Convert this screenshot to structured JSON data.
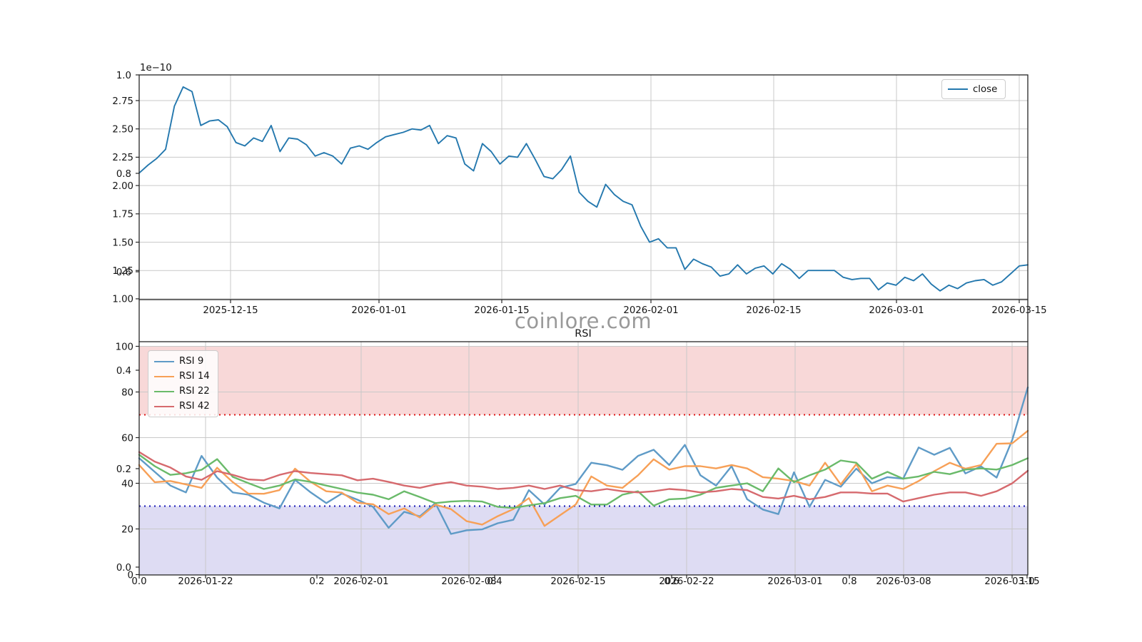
{
  "watermark": "coinlore.com",
  "overlay_axis": {
    "left_tick_labels": [
      "1.0",
      "0.8",
      "0.6",
      "0.4",
      "0.2",
      "0.0"
    ],
    "bottom_tick_labels": [
      "0.0",
      "0.2",
      "0.4",
      "0.6",
      "0.8",
      "1.0"
    ]
  },
  "chart_data": [
    {
      "type": "line",
      "title": "",
      "legend_position": "upper right",
      "grid": true,
      "y_offset_label": "1e−10",
      "x_ticks": [
        "2025-12-15",
        "2026-01-01",
        "2026-01-15",
        "2026-02-01",
        "2026-02-15",
        "2026-03-01",
        "2026-03-15"
      ],
      "x_range": [
        "2025-12-05",
        "2026-03-16"
      ],
      "y_tick_labels": [
        "2.75",
        "2.50",
        "2.25",
        "2.00",
        "1.75",
        "1.50",
        "1.25",
        "1.00"
      ],
      "y_tick_values": [
        2.75,
        2.5,
        2.25,
        2.0,
        1.75,
        1.5,
        1.25,
        1.0
      ],
      "ylim": [
        0.97,
        2.98
      ],
      "ylabel": "",
      "xlabel": "",
      "series": [
        {
          "name": "close",
          "color": "#2478ae",
          "values": [
            2.11,
            2.18,
            2.24,
            2.32,
            2.7,
            2.87,
            2.83,
            2.53,
            2.57,
            2.58,
            2.52,
            2.38,
            2.35,
            2.42,
            2.39,
            2.53,
            2.3,
            2.42,
            2.41,
            2.36,
            2.26,
            2.29,
            2.26,
            2.19,
            2.33,
            2.35,
            2.32,
            2.38,
            2.43,
            2.45,
            2.47,
            2.5,
            2.49,
            2.53,
            2.37,
            2.44,
            2.42,
            2.19,
            2.13,
            2.37,
            2.3,
            2.19,
            2.26,
            2.25,
            2.37,
            2.23,
            2.08,
            2.06,
            2.14,
            2.26,
            1.94,
            1.86,
            1.81,
            2.01,
            1.92,
            1.86,
            1.83,
            1.64,
            1.5,
            1.53,
            1.45,
            1.45,
            1.26,
            1.35,
            1.31,
            1.28,
            1.2,
            1.22,
            1.3,
            1.22,
            1.27,
            1.29,
            1.22,
            1.31,
            1.26,
            1.18,
            1.25,
            1.25,
            1.25,
            1.25,
            1.19,
            1.17,
            1.18,
            1.18,
            1.08,
            1.14,
            1.12,
            1.19,
            1.16,
            1.22,
            1.13,
            1.07,
            1.12,
            1.09,
            1.14,
            1.16,
            1.17,
            1.12,
            1.15,
            1.22,
            1.29,
            1.3
          ]
        }
      ]
    },
    {
      "type": "line",
      "title": "RSI",
      "legend_position": "upper left",
      "grid": true,
      "x_ticks": [
        "2026-01-22",
        "2026-02-01",
        "2026-02-08",
        "2026-02-15",
        "2026-02-22",
        "2026-03-01",
        "2026-03-08",
        "2026-03-15"
      ],
      "x_range": [
        "2026-01-18",
        "2026-03-16"
      ],
      "y_tick_labels": [
        "100",
        "80",
        "60",
        "40",
        "20",
        "0"
      ],
      "y_tick_values": [
        100,
        80,
        60,
        40,
        20,
        0
      ],
      "ylim": [
        0,
        100
      ],
      "overbought_level": 70,
      "oversold_level": 30,
      "overbought_line_color": "#dc1414",
      "oversold_line_color": "#1414b4",
      "bands": [
        {
          "from": 70,
          "to": 100,
          "color": "#f8d8d8",
          "name": "overbought-band"
        },
        {
          "from": 0,
          "to": 30,
          "color": "#dedcf3",
          "name": "oversold-band"
        }
      ],
      "series": [
        {
          "name": "RSI 9",
          "color": "#5f9bc7",
          "values": [
            51,
            45,
            39,
            36,
            52,
            42.5,
            36,
            35,
            31.5,
            29,
            41.5,
            36,
            31.3,
            35.5,
            32.8,
            29.7,
            20.5,
            27.5,
            25.5,
            31.3,
            17.8,
            19.4,
            19.8,
            22.5,
            24,
            37,
            30.7,
            38,
            39.7,
            49,
            47.9,
            45.9,
            52,
            54.7,
            48,
            56.8,
            43.5,
            39,
            47.5,
            33,
            28.5,
            26.5,
            44.8,
            29.7,
            41.5,
            38.5,
            46.4,
            40,
            42.7,
            42,
            55.7,
            52.5,
            55.5,
            44.3,
            47.4,
            42.5,
            59,
            82
          ]
        },
        {
          "name": "RSI 14",
          "color": "#f7a057",
          "values": [
            48,
            40.5,
            41,
            39.5,
            38,
            46.8,
            40.5,
            35.5,
            35.4,
            37,
            46.4,
            40.6,
            36.5,
            35.9,
            31.5,
            30.8,
            26.5,
            29,
            25,
            30.7,
            28.7,
            23.4,
            21.9,
            25.6,
            28.7,
            33.5,
            21.3,
            26,
            30.7,
            43,
            39,
            38,
            43.5,
            50.5,
            46,
            47.5,
            47.5,
            46.5,
            48,
            46.5,
            42.7,
            42,
            41,
            39,
            49,
            39.5,
            48.4,
            36.5,
            39,
            37.5,
            41,
            45.3,
            49,
            46.4,
            48,
            57.3,
            57.5,
            63
          ]
        },
        {
          "name": "RSI 22",
          "color": "#6aba6a",
          "values": [
            52.5,
            47.5,
            43.7,
            44.4,
            45.9,
            50.6,
            42.8,
            40.1,
            37.5,
            39,
            41.7,
            40.6,
            39,
            37.5,
            35.9,
            35,
            33,
            36.5,
            34,
            31.3,
            32,
            32.3,
            32,
            29.7,
            29.2,
            30.3,
            31.3,
            33.5,
            34.5,
            30.7,
            30.7,
            35,
            36.5,
            30.2,
            33,
            33.3,
            35,
            38,
            39,
            40,
            36.5,
            46.5,
            40.5,
            43.5,
            46,
            50,
            49,
            42,
            45,
            42,
            43,
            45,
            44,
            46,
            46.5,
            46,
            48,
            51
          ]
        },
        {
          "name": "RSI 42",
          "color": "#d66a6e",
          "values": [
            53.7,
            49.5,
            46.9,
            43,
            41.5,
            45.3,
            43.7,
            41.7,
            41.3,
            43.7,
            45.3,
            44.5,
            44,
            43.5,
            41.3,
            42,
            40.6,
            39,
            38,
            39.5,
            40.5,
            39,
            38.5,
            37.5,
            38,
            39,
            37.5,
            39,
            37,
            36.5,
            37.5,
            36.5,
            36,
            36.5,
            37.5,
            37,
            36,
            36.5,
            37.5,
            37,
            34,
            33.3,
            34.5,
            33,
            34,
            36,
            36,
            35.5,
            35.5,
            32,
            33.5,
            35,
            36,
            36,
            34.5,
            36.5,
            40,
            45.5
          ]
        }
      ]
    }
  ],
  "style": {
    "grid_color": "#c9c9c9",
    "spine_color": "#262626",
    "text_color": "#141414",
    "background": "#ffffff"
  }
}
